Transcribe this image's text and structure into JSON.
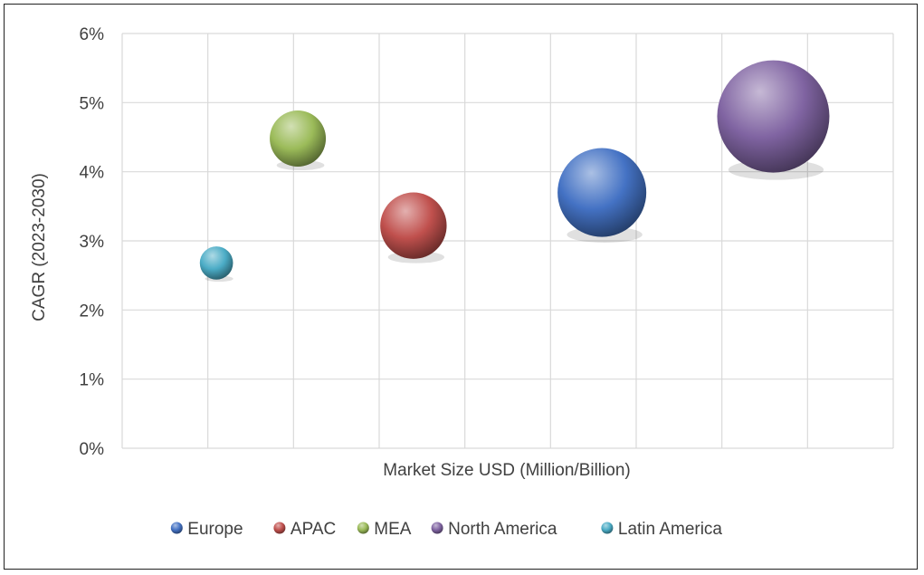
{
  "chart_data": {
    "type": "bubble",
    "title": "",
    "xlabel": "Market Size USD (Million/Billion)",
    "ylabel": "CAGR (2023-2030)",
    "ylim": [
      0,
      6
    ],
    "yticks": [
      "0%",
      "1%",
      "2%",
      "3%",
      "4%",
      "5%",
      "6%"
    ],
    "xlim": [
      0,
      9
    ],
    "grid": true,
    "legend_position": "bottom",
    "series": [
      {
        "name": "Europe",
        "x": 5.6,
        "y": 3.7,
        "size": 5.0,
        "color": "#4472C4"
      },
      {
        "name": "APAC",
        "x": 3.4,
        "y": 3.22,
        "size": 2.8,
        "color": "#C0504D"
      },
      {
        "name": "MEA",
        "x": 2.05,
        "y": 4.48,
        "size": 2.0,
        "color": "#9BBB59"
      },
      {
        "name": "North America",
        "x": 7.6,
        "y": 4.8,
        "size": 8.0,
        "color": "#8064A2"
      },
      {
        "name": "Latin America",
        "x": 1.1,
        "y": 2.68,
        "size": 0.7,
        "color": "#4BACC6"
      }
    ]
  }
}
